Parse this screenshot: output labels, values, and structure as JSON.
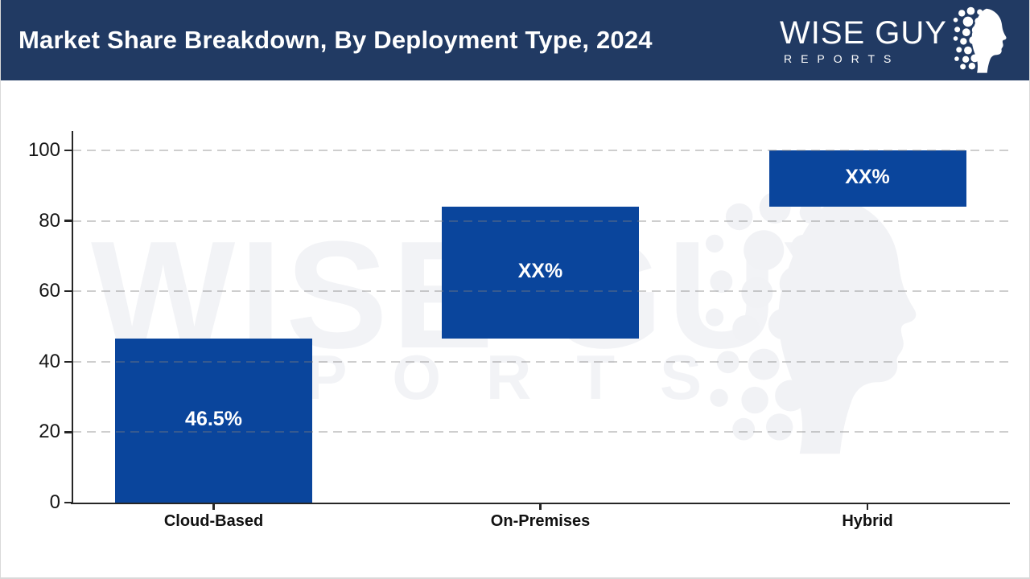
{
  "header": {
    "title": "Market Share Breakdown, By Deployment Type, 2024",
    "logo": {
      "name_line": "WISE GUY",
      "sub_line": "REPORTS"
    }
  },
  "watermark": {
    "name_line": "WISE GUY",
    "sub_line": "REPORTS"
  },
  "chart_data": {
    "type": "bar",
    "variant": "stacked-breakdown-waterfall",
    "title": "Market Share Breakdown, By Deployment Type, 2024",
    "categories": [
      "Cloud-Based",
      "On-Premises",
      "Hybrid"
    ],
    "segments": [
      {
        "category": "Cloud-Based",
        "from": 0,
        "to": 46.5,
        "label": "46.5%"
      },
      {
        "category": "On-Premises",
        "from": 46.5,
        "to": 84,
        "label": "XX%"
      },
      {
        "category": "Hybrid",
        "from": 84,
        "to": 100,
        "label": "XX%"
      }
    ],
    "yticks": [
      0,
      20,
      40,
      60,
      80,
      100
    ],
    "ylim": [
      0,
      105
    ],
    "xlabel": "",
    "ylabel": "",
    "grid": "horizontal-dashed-over-bars",
    "legend": "none",
    "bar_color": "#0a459c",
    "bar_label_color": "#ffffff",
    "axis_color": "#262626",
    "header_color": "#213a63",
    "watermark_color": "#f2f3f6"
  }
}
